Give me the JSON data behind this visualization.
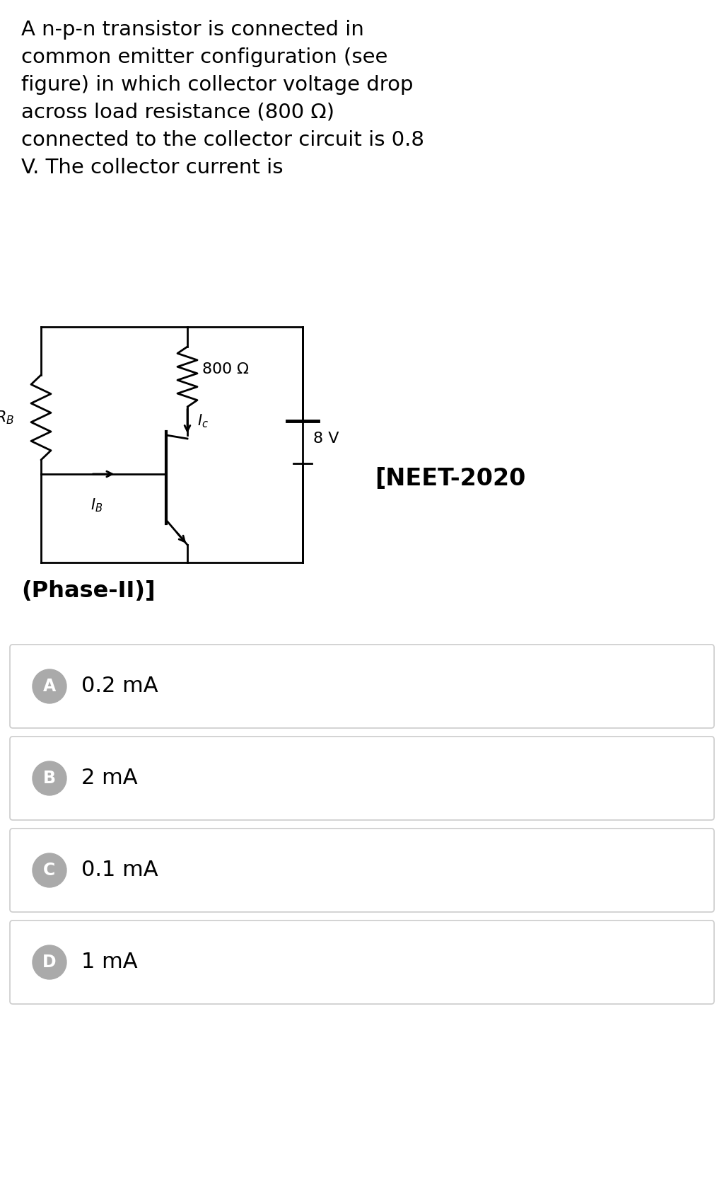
{
  "question_text": "A n-p-n transistor is connected in\ncommon emitter configuration (see\nfigure) in which collector voltage drop\nacross load resistance (800 Ω)\nconnected to the collector circuit is 0.8\nV. The collector current is",
  "phase_text": "(Phase-II)]",
  "neet_text": "[NEET-2020",
  "options": [
    {
      "label": "A",
      "text": "0.2 mA"
    },
    {
      "label": "B",
      "text": "2 mA"
    },
    {
      "label": "C",
      "text": "0.1 mA"
    },
    {
      "label": "D",
      "text": "1 mA"
    }
  ],
  "bg_color": "#ffffff",
  "text_color": "#000000",
  "option_border": "#cccccc",
  "label_bg": "#aaaaaa",
  "label_text": "#ffffff",
  "question_fontsize": 21,
  "option_fontsize": 22,
  "label_fontsize": 17
}
